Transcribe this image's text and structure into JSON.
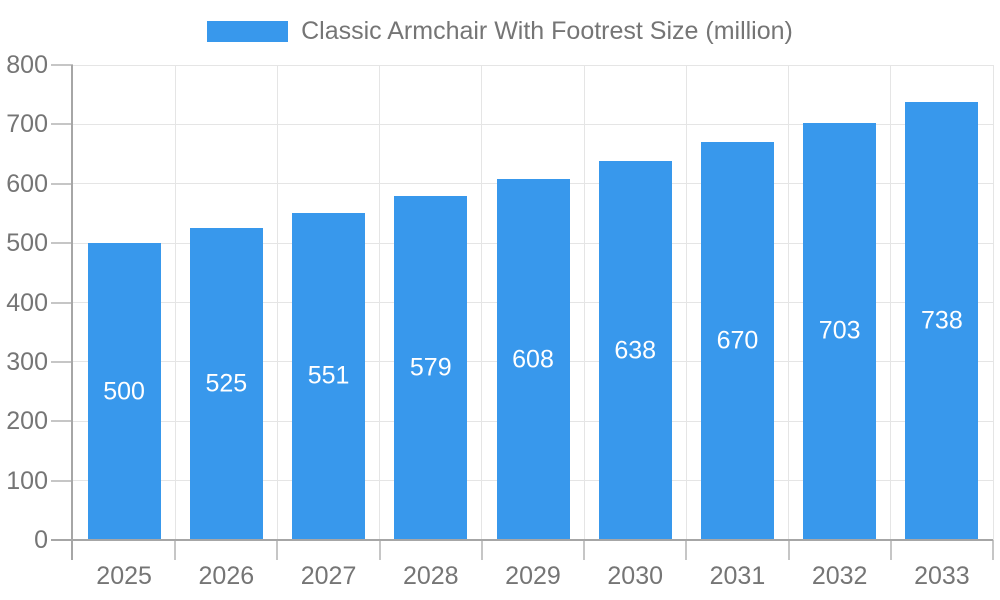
{
  "legend": {
    "label": "Classic Armchair With Footrest Size (million)"
  },
  "chart_data": {
    "type": "bar",
    "title": "Classic Armchair With Footrest Size (million)",
    "categories": [
      "2025",
      "2026",
      "2027",
      "2028",
      "2029",
      "2030",
      "2031",
      "2032",
      "2033"
    ],
    "values": [
      500,
      525,
      551,
      579,
      608,
      638,
      670,
      703,
      738
    ],
    "xlabel": "",
    "ylabel": "",
    "ylim": [
      0,
      800
    ],
    "yticks": [
      0,
      100,
      200,
      300,
      400,
      500,
      600,
      700,
      800
    ],
    "grid": true,
    "legend_position": "top-center",
    "value_labels_position": "inside-middle",
    "colors": {
      "bar": "#3898EC",
      "value_label": "#FFFFFF",
      "axis_text": "#757575",
      "gridline": "#E5E5E5",
      "tick": "#C6C6C6",
      "axis_line": "#A6A6A6",
      "background": "#FFFFFF"
    }
  }
}
